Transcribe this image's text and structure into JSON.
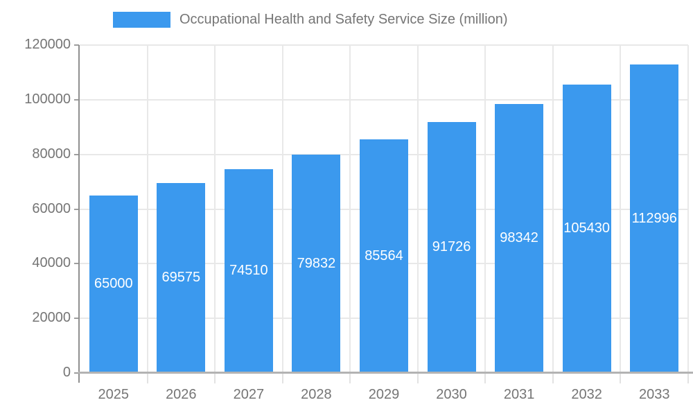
{
  "chart_data": {
    "type": "bar",
    "title": "Occupational Health and Safety Service Size (million)",
    "categories": [
      "2025",
      "2026",
      "2027",
      "2028",
      "2029",
      "2030",
      "2031",
      "2032",
      "2033"
    ],
    "values": [
      65000,
      69575,
      74510,
      79832,
      85564,
      91726,
      98342,
      105430,
      112996
    ],
    "value_labels": [
      "65000",
      "69575",
      "74510",
      "79832",
      "85564",
      "91726",
      "98342",
      "105430",
      "112996"
    ],
    "xlabel": "",
    "ylabel": "",
    "ylim": [
      0,
      120000
    ],
    "yticks": [
      0,
      20000,
      40000,
      60000,
      80000,
      100000,
      120000
    ],
    "ytick_labels": [
      "0",
      "20000",
      "40000",
      "60000",
      "80000",
      "100000",
      "120000"
    ],
    "grid": true,
    "legend_position": "top",
    "value_label_position": "inside-center",
    "colors": {
      "bar": "#3B99EE",
      "bar_value_text": "#ffffff",
      "axis_text": "#757575",
      "legend_text": "#757575",
      "gridline": "#e8e8e8",
      "x_tick": "#e2e2e2",
      "y_axis_line": "#8f8f8f",
      "baseline": "#b3b3b3",
      "y_tick": "#9e9e9e",
      "background": "#ffffff"
    }
  }
}
